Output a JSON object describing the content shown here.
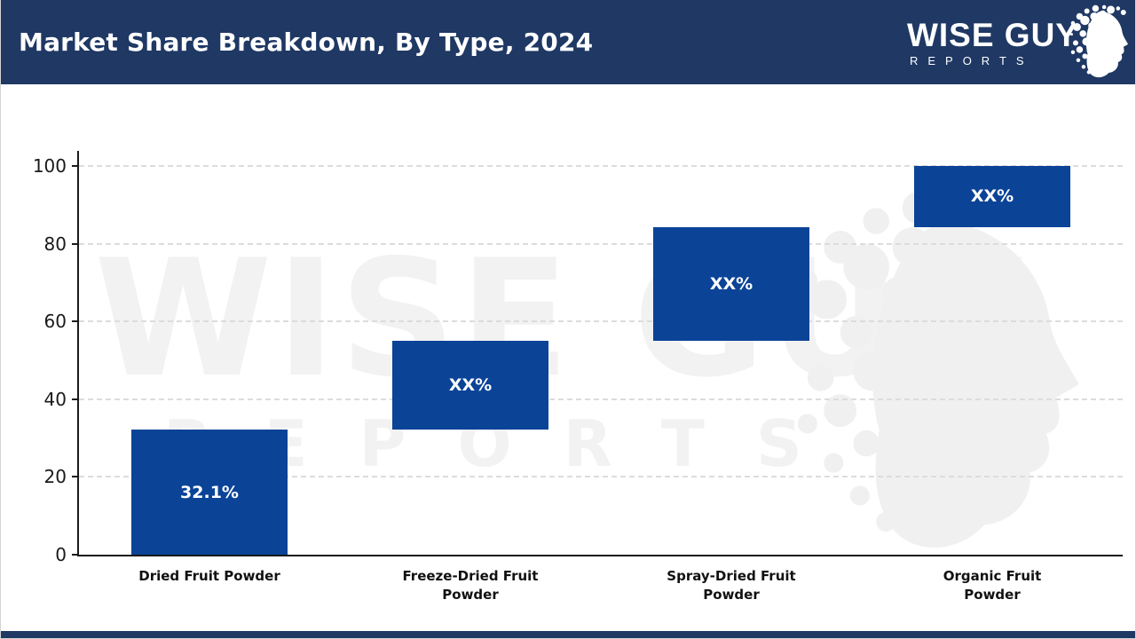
{
  "header": {
    "title": "Market Share Breakdown, By Type, 2024",
    "logo": {
      "line1": "WISE GUY",
      "line2": "REPORTS"
    }
  },
  "watermark": {
    "line1": "WISE GUY",
    "line2": "REPORTS"
  },
  "colors": {
    "header_bg": "#1f3864",
    "footer_bg": "#1f3864",
    "bar": "#0b4397",
    "bar_label_text": "#ffffff",
    "axis": "#1a1a1a",
    "gridline": "#dcdcdc",
    "watermark": "#f2f2f3"
  },
  "chart_data": {
    "type": "bar",
    "subtype": "stacked-waterfall",
    "title": "Market Share Breakdown, By Type, 2024",
    "categories": [
      "Dried Fruit Powder",
      "Freeze-Dried Fruit Powder",
      "Spray-Dried Fruit Powder",
      "Organic Fruit Powder"
    ],
    "segments": [
      {
        "category": "Dried Fruit Powder",
        "start": 0,
        "end": 32.1,
        "label": "32.1%"
      },
      {
        "category": "Freeze-Dried Fruit Powder",
        "start": 32.1,
        "end": 55.0,
        "label": "XX%"
      },
      {
        "category": "Spray-Dried Fruit Powder",
        "start": 55.0,
        "end": 84.3,
        "label": "XX%"
      },
      {
        "category": "Organic Fruit Powder",
        "start": 84.3,
        "end": 100,
        "label": "XX%"
      }
    ],
    "xlabel": "",
    "ylabel": "",
    "ylim": [
      0,
      100
    ],
    "yticks": [
      0,
      20,
      40,
      60,
      80,
      100
    ],
    "grid": "horizontal-dashed",
    "legend": "none"
  }
}
